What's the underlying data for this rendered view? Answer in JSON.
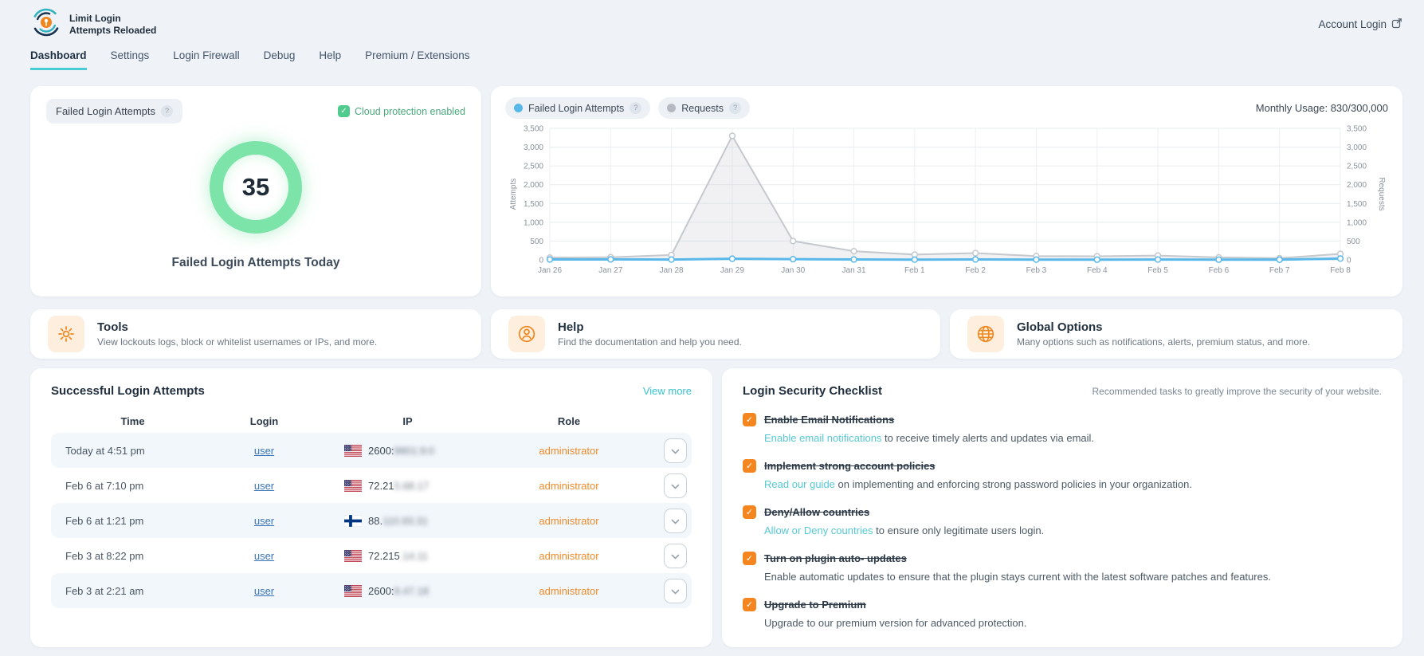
{
  "colors": {
    "accent_teal": "#49ccd4",
    "accent_orange": "#f0861e",
    "success_green": "#4ecb8d",
    "link_blue": "#3a74b8",
    "link_teal": "#56c8d2",
    "role_orange": "#ef8b2a",
    "chart_blue": "#58b8e9",
    "chart_gray": "#c5c8cd",
    "gauge_green": "#7ce4a9"
  },
  "header": {
    "logo_line1": "Limit Login",
    "logo_line2": "Attempts Reloaded",
    "account_login": "Account Login"
  },
  "nav": {
    "tabs": [
      {
        "label": "Dashboard",
        "active": true
      },
      {
        "label": "Settings",
        "active": false
      },
      {
        "label": "Login Firewall",
        "active": false
      },
      {
        "label": "Debug",
        "active": false
      },
      {
        "label": "Help",
        "active": false
      },
      {
        "label": "Premium / Extensions",
        "active": false
      }
    ]
  },
  "gauge_card": {
    "pill_label": "Failed Login Attempts",
    "cloud_status": "Cloud protection enabled",
    "value": "35",
    "caption": "Failed Login Attempts Today"
  },
  "chart_card": {
    "legend_attempts": "Failed Login Attempts",
    "legend_requests": "Requests",
    "monthly_usage": "Monthly Usage: 830/300,000"
  },
  "chart_data": {
    "type": "area",
    "categories": [
      "Jan 26",
      "Jan 27",
      "Jan 28",
      "Jan 29",
      "Jan 30",
      "Jan 31",
      "Feb 1",
      "Feb 2",
      "Feb 3",
      "Feb 4",
      "Feb 5",
      "Feb 6",
      "Feb 7",
      "Feb 8"
    ],
    "series": [
      {
        "name": "Requests",
        "color": "#c5c8cd",
        "fill": "rgba(203,206,211,0.28)",
        "values": [
          60,
          70,
          130,
          3300,
          500,
          230,
          140,
          180,
          100,
          95,
          115,
          65,
          45,
          160
        ]
      },
      {
        "name": "Failed Login Attempts",
        "color": "#58b8e9",
        "fill": "none",
        "values": [
          10,
          12,
          8,
          30,
          18,
          10,
          6,
          10,
          6,
          5,
          8,
          5,
          4,
          35
        ]
      }
    ],
    "title": "",
    "xlabel": "",
    "ylabel_left": "Attempts",
    "ylabel_right": "Requests",
    "ylim": [
      0,
      3500
    ],
    "ytick_step": 500,
    "grid": true,
    "legend_position": "top-left"
  },
  "info_cards": [
    {
      "icon": "gear-icon",
      "title": "Tools",
      "desc": "View lockouts logs, block or whitelist usernames or IPs, and more."
    },
    {
      "icon": "person-icon",
      "title": "Help",
      "desc": "Find the documentation and help you need."
    },
    {
      "icon": "globe-icon",
      "title": "Global Options",
      "desc": "Many options such as notifications, alerts, premium status, and more."
    }
  ],
  "table": {
    "title": "Successful Login Attempts",
    "view_more": "View more",
    "columns": [
      "Time",
      "Login",
      "IP",
      "Role"
    ],
    "rows": [
      {
        "time": "Today at 4:51 pm",
        "login": "user",
        "flag": "us-flag",
        "ip_visible": "2600:",
        "ip_redacted": "8801:9:0",
        "role": "administrator"
      },
      {
        "time": "Feb 6 at 7:10 pm",
        "login": "user",
        "flag": "us-flag",
        "ip_visible": "72.21",
        "ip_redacted": "5.68.17",
        "role": "administrator"
      },
      {
        "time": "Feb 6 at 1:21 pm",
        "login": "user",
        "flag": "fi-flag",
        "ip_visible": "88.",
        "ip_redacted": "110.93.31",
        "role": "administrator"
      },
      {
        "time": "Feb 3 at 8:22 pm",
        "login": "user",
        "flag": "us-flag",
        "ip_visible": "72.215",
        "ip_redacted": ".14.11",
        "role": "administrator"
      },
      {
        "time": "Feb 3 at 2:21 am",
        "login": "user",
        "flag": "us-flag",
        "ip_visible": "2600:",
        "ip_redacted": "8.47.18",
        "role": "administrator"
      }
    ]
  },
  "checklist": {
    "title": "Login Security Checklist",
    "subtitle": "Recommended tasks to greatly improve the security of your website.",
    "items": [
      {
        "title": "Enable Email Notifications",
        "link_text": "Enable email notifications",
        "desc_rest": " to receive timely alerts and updates via email.",
        "checked": true
      },
      {
        "title": "Implement strong account policies",
        "link_text": "Read our guide",
        "desc_rest": " on implementing and enforcing strong password policies in your organization.",
        "checked": true
      },
      {
        "title": "Deny/Allow countries",
        "link_text": "Allow or Deny countries",
        "desc_rest": " to ensure only legitimate users login.",
        "checked": true
      },
      {
        "title": "Turn on plugin auto- updates",
        "link_text": "",
        "desc_rest": "Enable automatic updates to ensure that the plugin stays current with the latest software patches and features.",
        "checked": true
      },
      {
        "title": "Upgrade to Premium",
        "link_text": "",
        "desc_rest": "Upgrade to our premium version for advanced protection.",
        "checked": true
      }
    ]
  }
}
